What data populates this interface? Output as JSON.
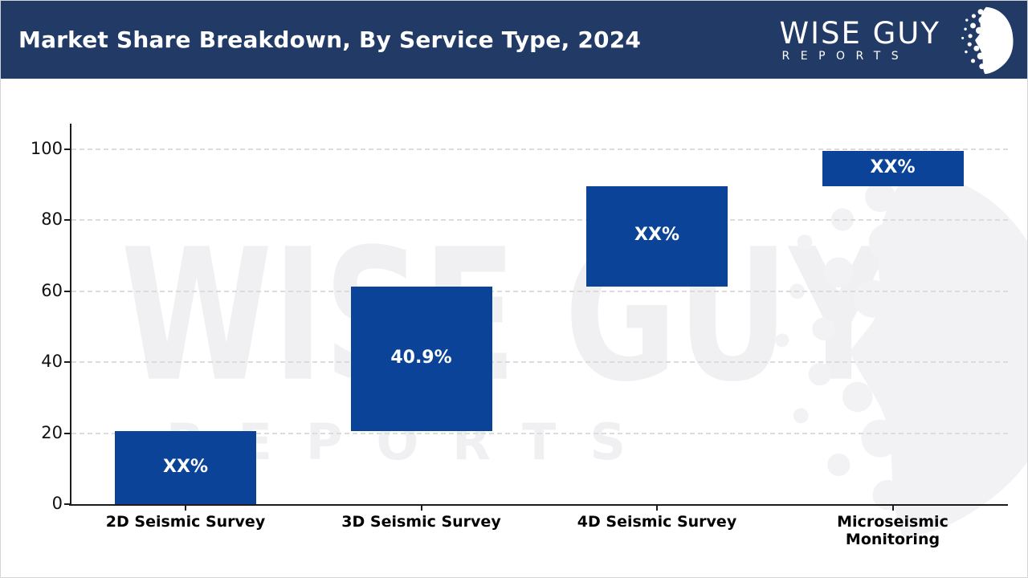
{
  "header": {
    "title": "Market Share Breakdown, By Service Type, 2024",
    "brand": {
      "line1": "WISE GUY",
      "line2": "REPORTS"
    }
  },
  "watermark": {
    "line1": "WISE GUY",
    "line2": "REPORTS"
  },
  "chart_data": {
    "type": "waterfall",
    "title": "Market Share Breakdown, By Service Type, 2024",
    "categories": [
      "2D Seismic Survey",
      "3D Seismic Survey",
      "4D Seismic Survey",
      "Microseismic Monitoring"
    ],
    "segments": [
      {
        "category": "2D Seismic Survey",
        "start": 0,
        "end": 20.5,
        "label": "XX%"
      },
      {
        "category": "3D Seismic Survey",
        "start": 20.5,
        "end": 61.4,
        "label": "40.9%"
      },
      {
        "category": "4D Seismic Survey",
        "start": 61.4,
        "end": 89.6,
        "label": "XX%"
      },
      {
        "category": "Microseismic Monitoring",
        "start": 89.6,
        "end": 99.5,
        "label": "XX%"
      }
    ],
    "y_ticks": [
      0,
      20,
      40,
      60,
      80,
      100
    ],
    "ylim": [
      0,
      107
    ],
    "xlabel": "",
    "ylabel": "",
    "grid": "dashed-horizontal",
    "legend": "none",
    "bar_color": "#0a4397",
    "bar_label_color": "#ffffff",
    "axis_color": "#1c1c1c",
    "header_color": "#213a66"
  }
}
